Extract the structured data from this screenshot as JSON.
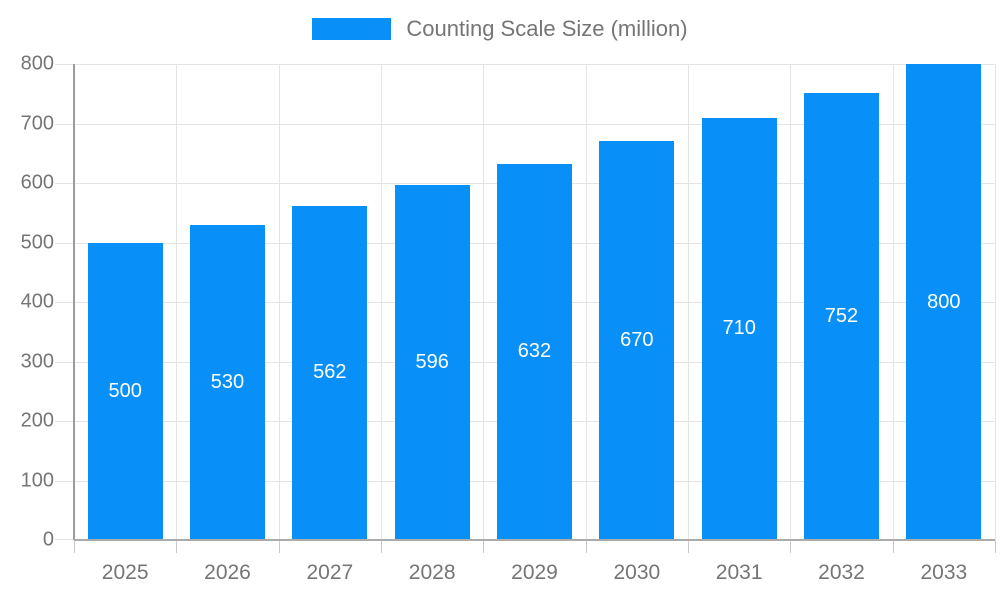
{
  "chart_data": {
    "type": "bar",
    "title": "Counting Scale Size (million)",
    "legend": [
      {
        "label": "Counting Scale Size (million)",
        "color": "#0890f8"
      }
    ],
    "legend_position": "top",
    "categories": [
      "2025",
      "2026",
      "2027",
      "2028",
      "2029",
      "2030",
      "2031",
      "2032",
      "2033"
    ],
    "values": [
      500,
      530,
      562,
      596,
      632,
      670,
      710,
      752,
      800
    ],
    "xlabel": "",
    "ylabel": "",
    "ylim": [
      0,
      800
    ],
    "ytick_step": 100,
    "y_ticks": [
      "0",
      "100",
      "200",
      "300",
      "400",
      "500",
      "600",
      "700",
      "800"
    ],
    "grid": true,
    "bar_color": "#0890f8",
    "value_label_color": "#ffffff",
    "axis_text_color": "#757575"
  }
}
